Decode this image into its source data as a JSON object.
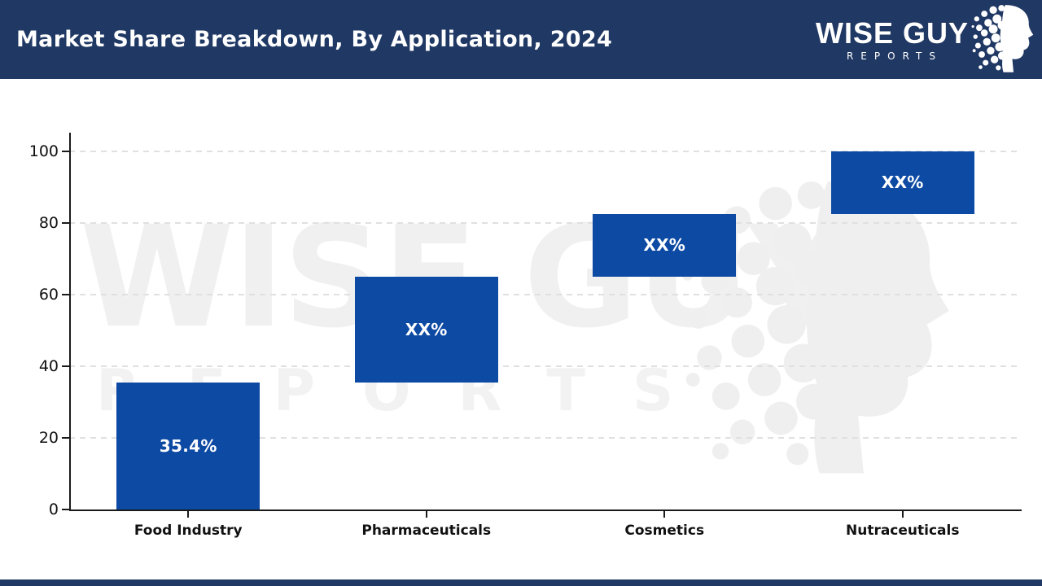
{
  "header": {
    "title": "Market Share Breakdown, By Application, 2024",
    "logo": {
      "wordmark": "WISE GUY",
      "subtitle": "REPORTS"
    }
  },
  "watermark": {
    "line1": "WISE GUY",
    "line2": "REPORTS"
  },
  "chart_data": {
    "type": "bar",
    "subtype": "floating-waterfall",
    "title": "Market Share Breakdown, By Application, 2024",
    "categories": [
      "Food Industry",
      "Pharmaceuticals",
      "Cosmetics",
      "Nutraceuticals"
    ],
    "segments": [
      {
        "category": "Food Industry",
        "start": 0,
        "end": 35.4,
        "label": "35.4%"
      },
      {
        "category": "Pharmaceuticals",
        "start": 35.4,
        "end": 65.0,
        "label": "XX%"
      },
      {
        "category": "Cosmetics",
        "start": 65.0,
        "end": 82.6,
        "label": "XX%"
      },
      {
        "category": "Nutraceuticals",
        "start": 82.6,
        "end": 100.0,
        "label": "XX%"
      }
    ],
    "xlabel": "",
    "ylabel": "",
    "ylim": [
      0,
      100
    ],
    "yticks": [
      0,
      20,
      40,
      60,
      80,
      100
    ],
    "grid": "horizontal-dashed",
    "legend": "none",
    "bar_color": "#0d4aa3",
    "value_label_color": "#ffffff",
    "axis_color": "#1a1a1a",
    "gridline_color": "#e0e0e0",
    "header_color": "#203864"
  }
}
